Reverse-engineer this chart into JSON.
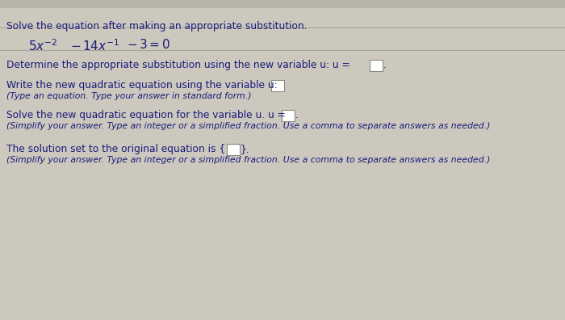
{
  "bg_color": "#ccc8be",
  "panel_color": "#e2ddd5",
  "title_line": "Solve the equation after making an appropriate substitution.",
  "line1": "Determine the appropriate substitution using the new variable u: u =",
  "line2a": "Write the new quadratic equation using the variable u:",
  "line2b": "(Type an equation. Type your answer in standard form.)",
  "line3a": "Solve the new quadratic equation for the variable u. u =",
  "line3b": "(Simplify your answer. Type an integer or a simplified fraction. Use a comma to separate answers as needed.)",
  "line4a": "The solution set to the original equation is {",
  "line4a_end": "}.",
  "line4b": "(Simplify your answer. Type an integer or a simplified fraction. Use a comma to separate answers as needed.)",
  "main_color": "#1a1a7a",
  "divider_color": "#aaa49a",
  "box_edge_color": "#888880",
  "font_size_main": 8.8,
  "font_size_eq": 11.0,
  "font_size_small": 7.8,
  "top_bar_color": "#b8b4a8"
}
